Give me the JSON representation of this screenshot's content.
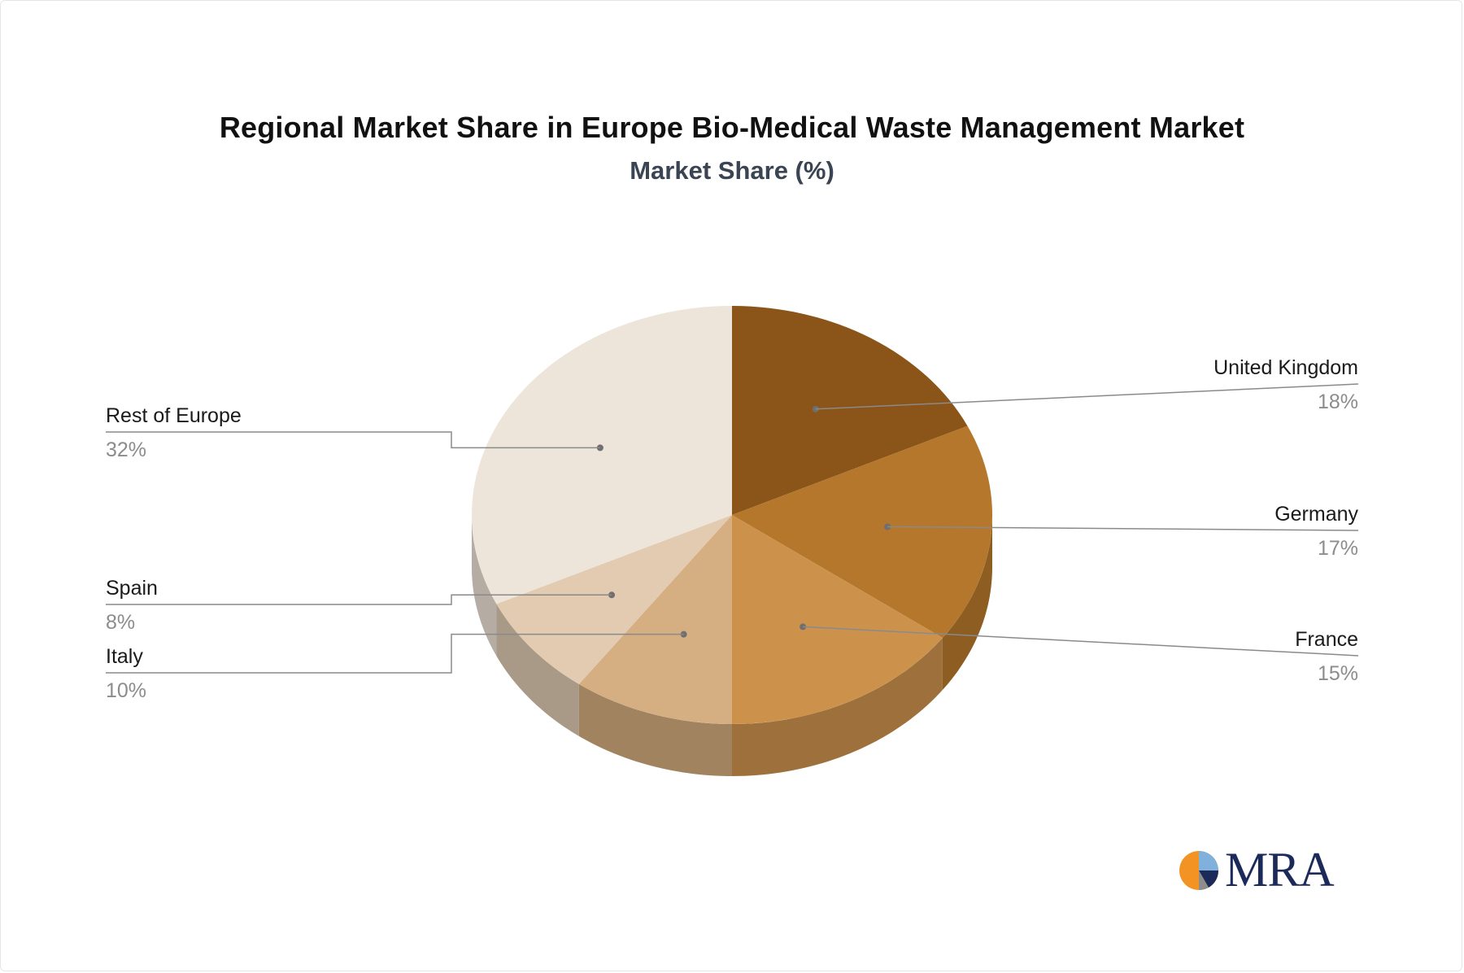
{
  "title": "Regional Market Share in Europe Bio-Medical Waste Management Market",
  "subtitle": "Market Share (%)",
  "logo_text": "MRA",
  "chart_data": {
    "type": "pie",
    "style": "3d",
    "title": "Regional Market Share in Europe Bio-Medical Waste Management Market",
    "subtitle": "Market Share (%)",
    "unit": "%",
    "slices": [
      {
        "label": "United Kingdom",
        "value": 18,
        "value_label": "18%",
        "color": "#8b5419",
        "side_color": "#6e4214",
        "label_side": "right"
      },
      {
        "label": "Germany",
        "value": 17,
        "value_label": "17%",
        "color": "#b4772b",
        "side_color": "#8e5d22",
        "label_side": "right"
      },
      {
        "label": "France",
        "value": 15,
        "value_label": "15%",
        "color": "#cc924c",
        "side_color": "#9e703c",
        "label_side": "right"
      },
      {
        "label": "Italy",
        "value": 10,
        "value_label": "10%",
        "color": "#d5ae82",
        "side_color": "#a1845f",
        "label_side": "left"
      },
      {
        "label": "Spain",
        "value": 8,
        "value_label": "8%",
        "color": "#e2cbb0",
        "side_color": "#a89a87",
        "label_side": "left"
      },
      {
        "label": "Rest of Europe",
        "value": 32,
        "value_label": "32%",
        "color": "#ede4da",
        "side_color": "#b5aca4",
        "label_side": "left"
      }
    ]
  }
}
